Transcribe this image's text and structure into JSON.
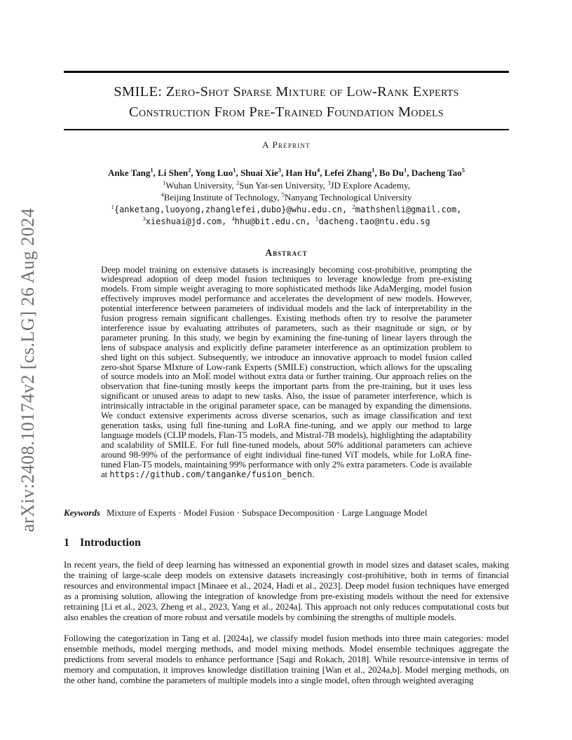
{
  "arxiv_label": "arXiv:2408.10174v2  [cs.LG]  26 Aug 2024",
  "title": {
    "line1": "SMILE: Zero-Shot Sparse Mixture of Low-Rank Experts",
    "line2": "Construction From Pre-Trained Foundation Models"
  },
  "preprint_label": "A Preprint",
  "authors": [
    {
      "name": "Anke Tang",
      "sup": "1",
      "tail": ", "
    },
    {
      "name": "Li Shen",
      "sup": "2",
      "tail": ", "
    },
    {
      "name": "Yong Luo",
      "sup": "1",
      "tail": ", "
    },
    {
      "name": "Shuai Xie",
      "sup": "3",
      "tail": ", "
    },
    {
      "name": "Han Hu",
      "sup": "4",
      "tail": ", "
    },
    {
      "name": "Lefei Zhang",
      "sup": "1",
      "tail": ", "
    },
    {
      "name": "Bo Du",
      "sup": "1",
      "tail": ", "
    },
    {
      "name": "Dacheng Tao",
      "sup": "5",
      "tail": ""
    }
  ],
  "affiliations": [
    {
      "parts": [
        {
          "sup": "1",
          "text": "Wuhan University, "
        },
        {
          "sup": "2",
          "text": "Sun Yat-sen University, "
        },
        {
          "sup": "3",
          "text": "JD Explore Academy,"
        }
      ]
    },
    {
      "parts": [
        {
          "sup": "4",
          "text": "Beijing Institute of Technology, "
        },
        {
          "sup": "5",
          "text": "Nanyang Technological University"
        }
      ]
    }
  ],
  "emails": [
    {
      "parts": [
        {
          "sup": "1",
          "text": "{anketang,luoyong,zhanglefei,dubo}@whu.edu.cn, "
        },
        {
          "sup": "2",
          "text": "mathshenli@gmail.com,"
        }
      ]
    },
    {
      "parts": [
        {
          "sup": "3",
          "text": "xieshuai@jd.com, "
        },
        {
          "sup": "4",
          "text": "hhu@bit.edu.cn, "
        },
        {
          "sup": "5",
          "text": "dacheng.tao@ntu.edu.sg"
        }
      ]
    }
  ],
  "abstract": {
    "heading": "Abstract",
    "body": "Deep model training on extensive datasets is increasingly becoming cost-prohibitive, prompting the widespread adoption of deep model fusion techniques to leverage knowledge from pre-existing models. From simple weight averaging to more sophisticated methods like AdaMerging, model fusion effectively improves model performance and accelerates the development of new models. However, potential interference between parameters of individual models and the lack of interpretability in the fusion progress remain significant challenges. Existing methods often try to resolve the parameter interference issue by evaluating attributes of parameters, such as their magnitude or sign, or by parameter pruning. In this study, we begin by examining the fine-tuning of linear layers through the lens of subspace analysis and explicitly define parameter interference as an optimization problem to shed light on this subject. Subsequently, we introduce an innovative approach to model fusion called zero-shot Sparse MIxture of Low-rank Experts (SMILE) construction, which allows for the upscaling of source models into an MoE model without extra data or further training. Our approach relies on the observation that fine-tuning mostly keeps the important parts from the pre-training, but it uses less significant or unused areas to adapt to new tasks. Also, the issue of parameter interference, which is intrinsically intractable in the original parameter space, can be managed by expanding the dimensions. We conduct extensive experiments across diverse scenarios, such as image classification and text generation tasks, using full fine-tuning and LoRA fine-tuning, and we apply our method to large language models (CLIP models, Flan-T5 models, and Mistral-7B models), highlighting the adaptability and scalability of SMILE. For full fine-tuned models, about 50% additional parameters can achieve around 98-99% of the performance of eight individual fine-tuned ViT models, while for LoRA fine-tuned Flan-T5 models, maintaining 99% performance with only 2% extra parameters. Code is available at ",
    "code_url": "https://github.com/tanganke/fusion_bench",
    "after_url": "."
  },
  "keywords": {
    "label": "Keywords",
    "text": "Mixture of Experts · Model Fusion · Subspace Decomposition · Large Language Model"
  },
  "section1": {
    "number": "1",
    "title": "Introduction"
  },
  "paragraphs": [
    "In recent years, the field of deep learning has witnessed an exponential growth in model sizes and dataset scales, making the training of large-scale deep models on extensive datasets increasingly cost-prohibitive, both in terms of financial resources and environmental impact [Minaee et al., 2024, Hadi et al., 2023]. Deep model fusion techniques have emerged as a promising solution, allowing the integration of knowledge from pre-existing models without the need for extensive retraining [Li et al., 2023, Zheng et al., 2023, Yang et al., 2024a]. This approach not only reduces computational costs but also enables the creation of more robust and versatile models by combining the strengths of multiple models.",
    "Following the categorization in Tang et al. [2024a], we classify model fusion methods into three main categories: model ensemble methods, model merging methods, and model mixing methods. Model ensemble techniques aggregate the predictions from several models to enhance performance [Sagi and Rokach, 2018]. While resource-intensive in terms of memory and computation, it improves knowledge distillation training [Wan et al., 2024a,b]. Model merging methods, on the other hand, combine the parameters of multiple models into a single model, often through weighted averaging"
  ]
}
